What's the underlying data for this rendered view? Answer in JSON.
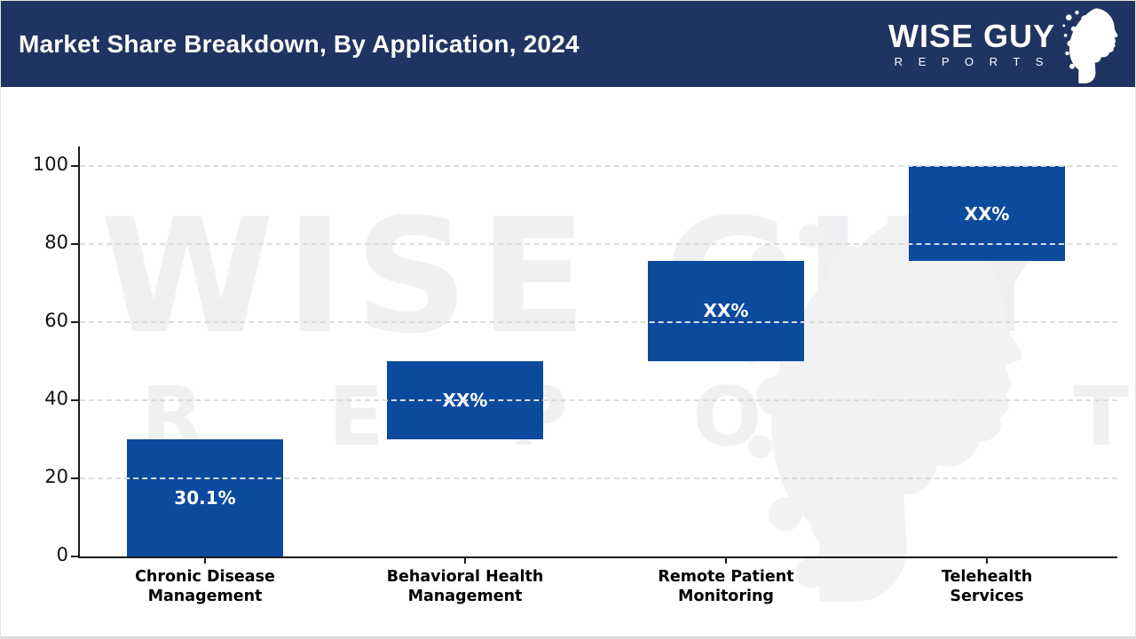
{
  "header": {
    "title": "Market Share Breakdown, By Application, 2024",
    "logo": {
      "name_line": "WISE GUY",
      "sub_line": "R E P O R T S"
    }
  },
  "watermark": {
    "name_line": "WISE GUY",
    "sub_line": "R E P O R T S"
  },
  "colors": {
    "header_bg": "#1f3461",
    "bar": "#0c4a9e",
    "title_text": "#ffffff",
    "watermark": "#f0f0f3",
    "gridline": "#dcdcdc",
    "axis": "#1a1a1a",
    "value_label": "#ffffff"
  },
  "chart_data": {
    "type": "bar",
    "variant": "waterfall",
    "title": "Market Share Breakdown, By Application, 2024",
    "categories": [
      "Chronic Disease Management",
      "Behavioral Health Management",
      "Remote Patient Monitoring",
      "Telehealth Services"
    ],
    "segments": [
      {
        "category": "Chronic Disease Management",
        "label": "30.1%",
        "start": 0,
        "end": 30.1
      },
      {
        "category": "Behavioral Health Management",
        "label": "XX%",
        "start": 30.1,
        "end": 50.1
      },
      {
        "category": "Remote Patient Monitoring",
        "label": "XX%",
        "start": 50.1,
        "end": 75.6
      },
      {
        "category": "Telehealth Services",
        "label": "XX%",
        "start": 75.6,
        "end": 100
      }
    ],
    "yticks": [
      0,
      20,
      40,
      60,
      80,
      100
    ],
    "ylim": [
      0,
      105
    ],
    "xlabel": "",
    "ylabel": "",
    "grid": "horizontal-dashed",
    "legend": "none",
    "bar_color": "#0c4a9e",
    "value_label_color": "#ffffff"
  }
}
